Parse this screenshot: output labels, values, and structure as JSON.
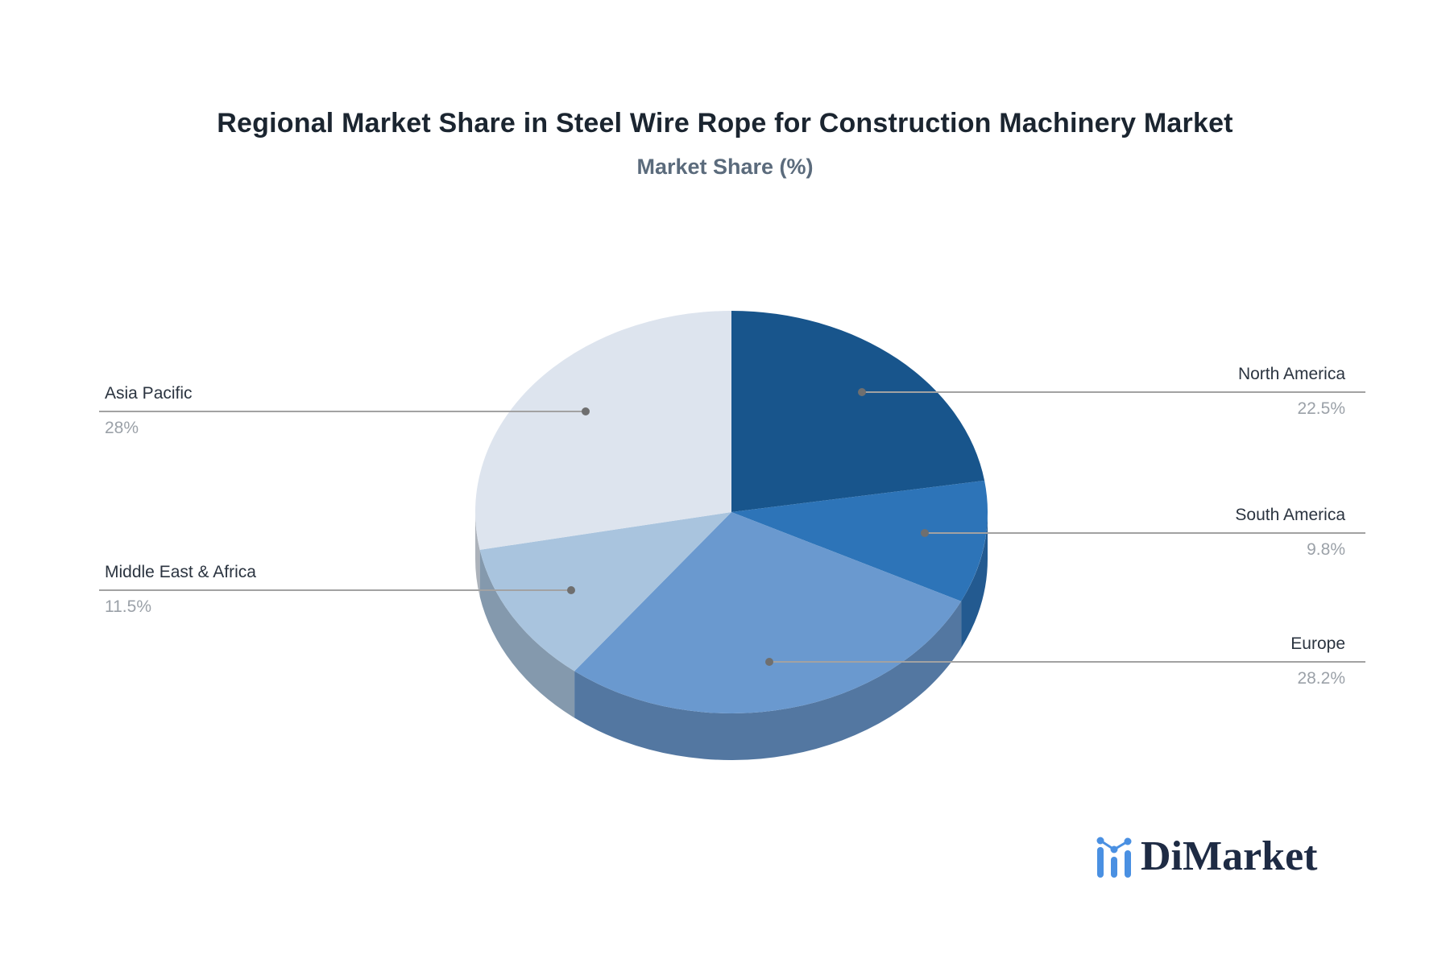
{
  "header": {
    "title": "Regional Market Share in Steel Wire Rope for Construction Machinery Market",
    "subtitle": "Market Share (%)"
  },
  "chart_data": {
    "type": "pie",
    "effect": "3d",
    "title": "Regional Market Share in Steel Wire Rope for Construction Machinery Market",
    "subtitle": "Market Share (%)",
    "unit": "%",
    "total": 100,
    "start_angle_deg": 0,
    "direction": "clockwise",
    "legend_position": "none",
    "label_style": "leader-lines",
    "slices": [
      {
        "label": "North America",
        "value": 22.5,
        "display": "22.5%",
        "color": "#18558c",
        "label_side": "right"
      },
      {
        "label": "South America",
        "value": 9.8,
        "display": "9.8%",
        "color": "#2d74b8",
        "label_side": "right"
      },
      {
        "label": "Europe",
        "value": 28.2,
        "display": "28.2%",
        "color": "#6a99cf",
        "label_side": "right"
      },
      {
        "label": "Middle East & Africa",
        "value": 11.5,
        "display": "11.5%",
        "color": "#a9c4de",
        "label_side": "left"
      },
      {
        "label": "Asia Pacific",
        "value": 28,
        "display": "28%",
        "color": "#dde4ee",
        "label_side": "left"
      }
    ]
  },
  "branding": {
    "logo_text": "DiMarket",
    "logo_icon": "bar-line-chart-icon",
    "icon_color": "#4a90e2",
    "text_color": "#1e2b44"
  },
  "style": {
    "leader_line_color": "#a2a2a2",
    "leader_dot_color": "#6f6f6f",
    "name_color": "#2b3440",
    "pct_color": "#9ba1a8"
  }
}
